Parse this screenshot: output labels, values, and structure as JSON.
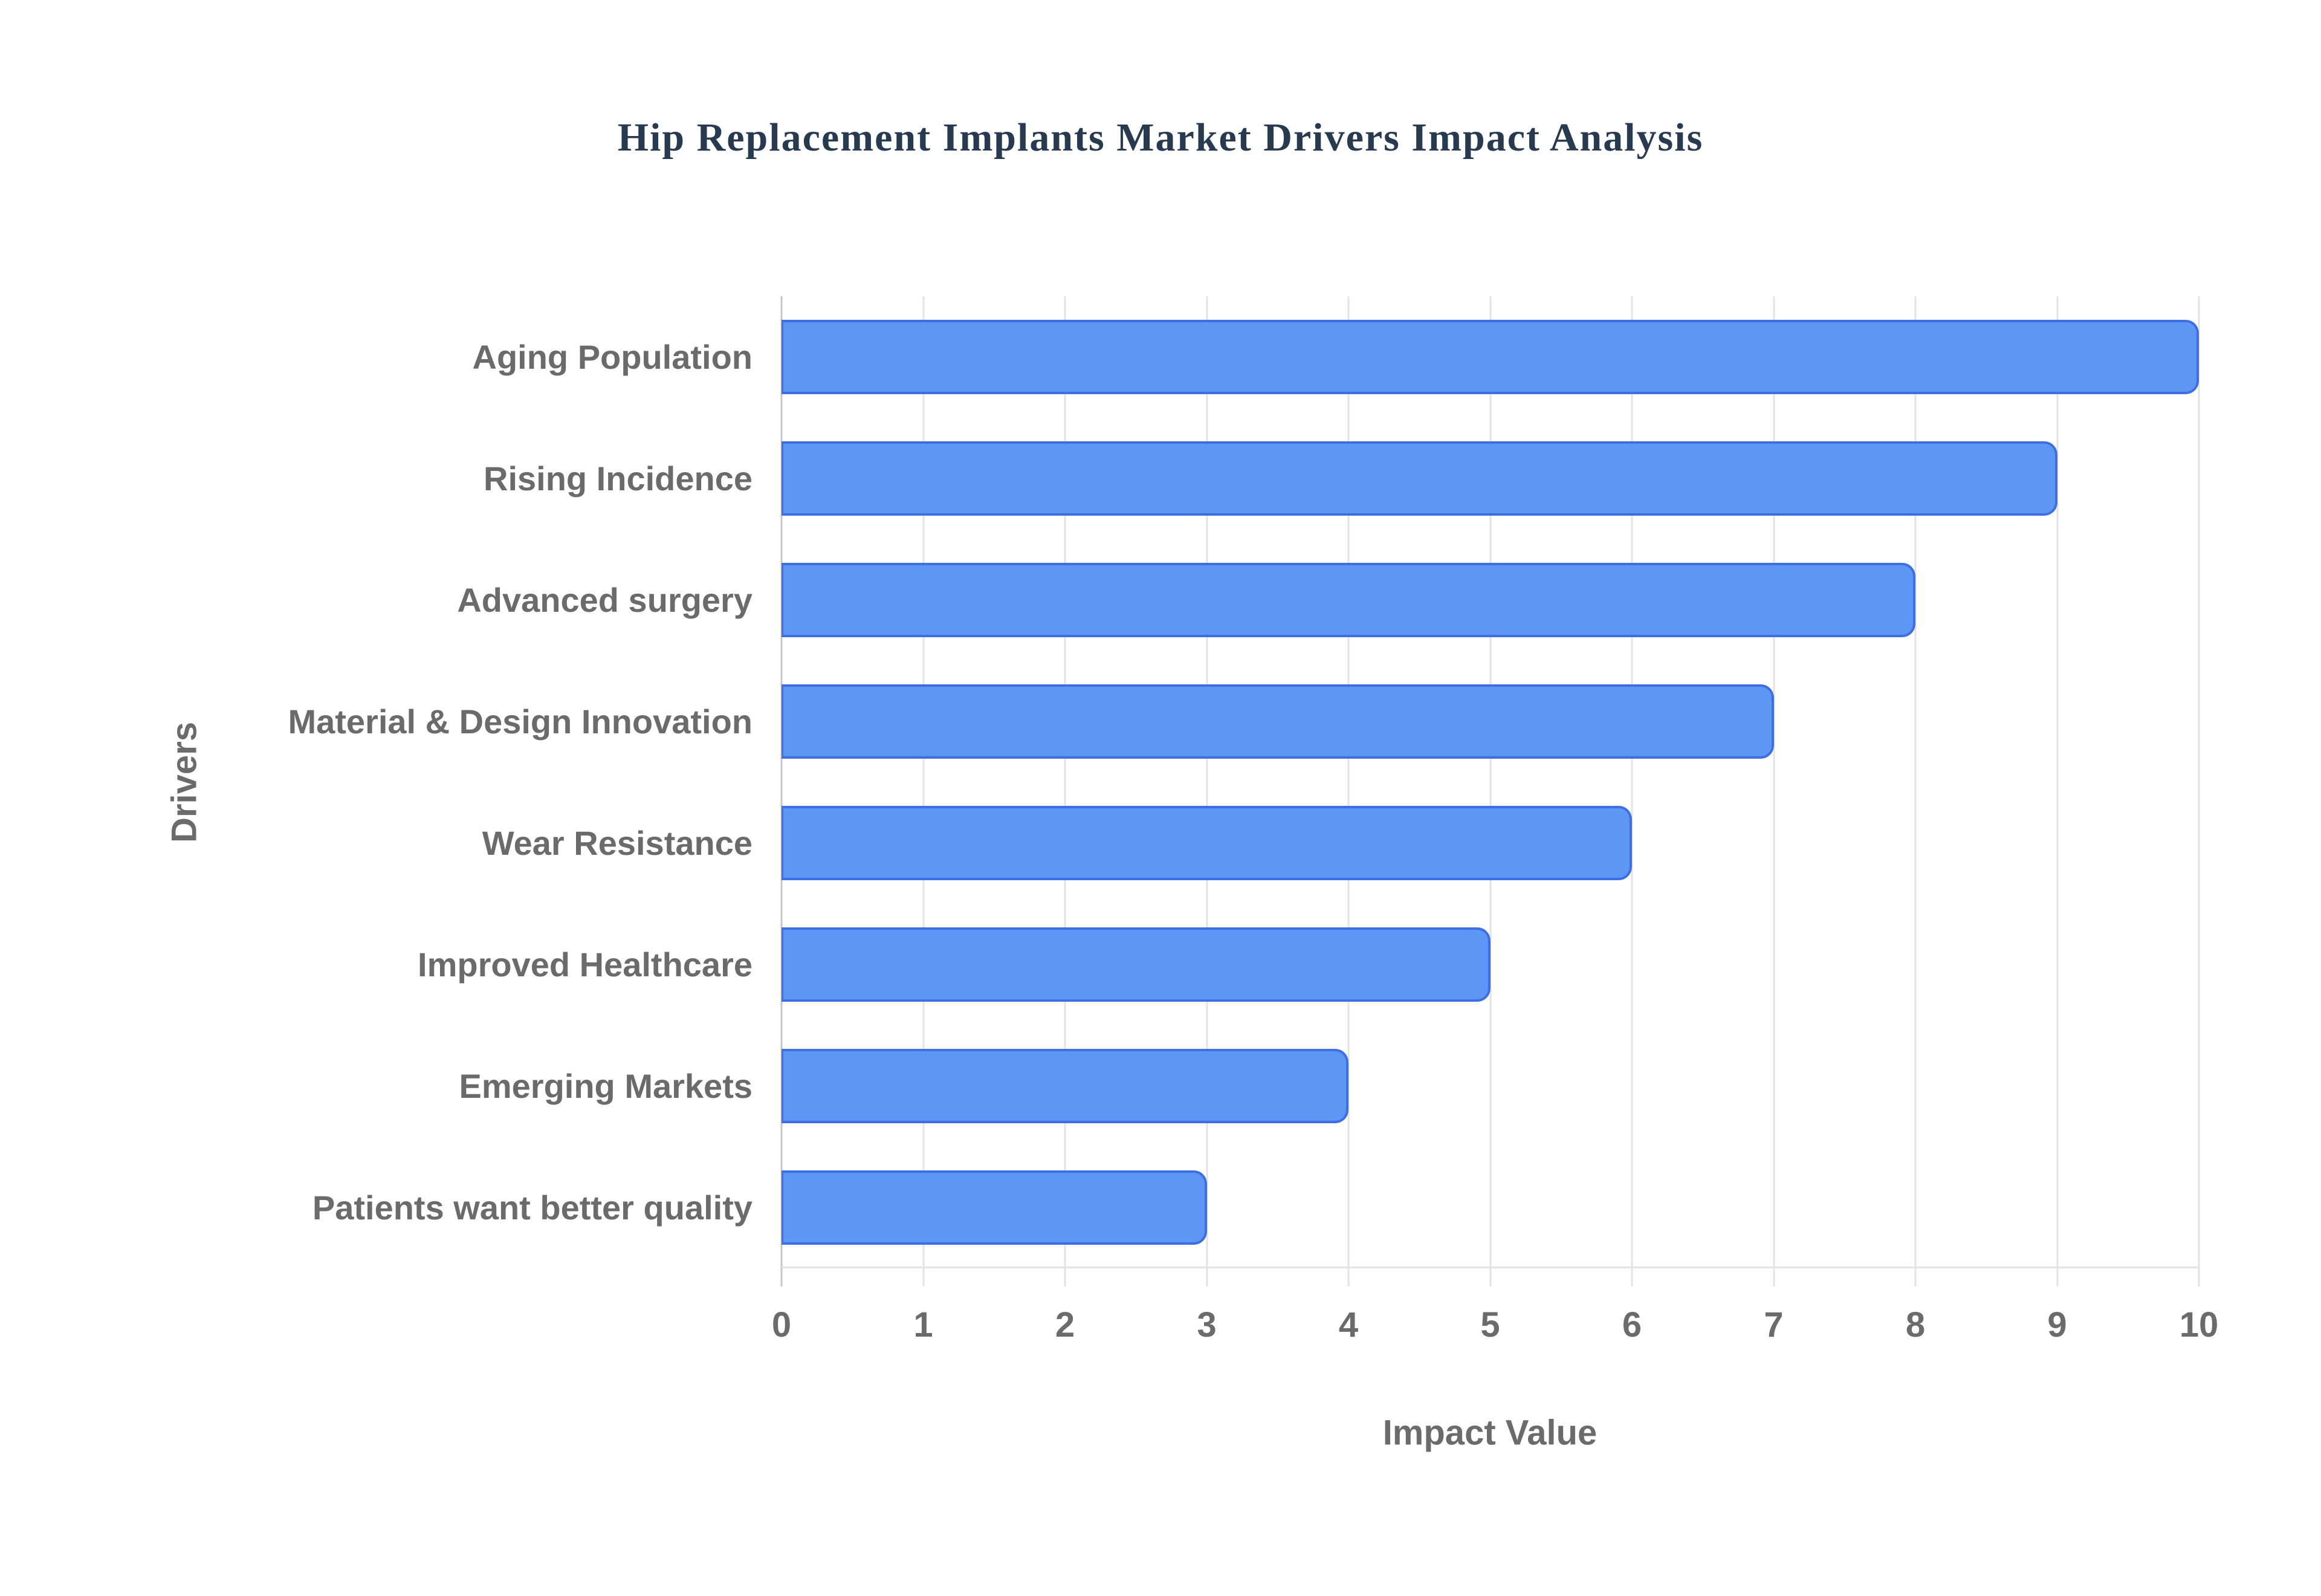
{
  "page": {
    "background": "#ffffff"
  },
  "chart_data": {
    "type": "bar",
    "orientation": "horizontal",
    "title": "Hip Replacement Implants Market Drivers Impact Analysis",
    "categories": [
      "Aging Population",
      "Rising Incidence",
      "Advanced surgery",
      "Material & Design Innovation",
      "Wear Resistance",
      "Improved Healthcare",
      "Emerging Markets",
      "Patients want better quality"
    ],
    "values": [
      10,
      9,
      8,
      7,
      6,
      5,
      4,
      3
    ],
    "xlabel": "Impact Value",
    "ylabel": "Drivers",
    "xlim": [
      0,
      10
    ],
    "xticks": [
      0,
      1,
      2,
      3,
      4,
      5,
      6,
      7,
      8,
      9,
      10
    ],
    "grid": true,
    "legend_visible": false,
    "colors": {
      "bar_fill": "#5E96F5",
      "bar_border": "#3D6EE4",
      "grid_line": "#e3e3e3",
      "zero_line": "#c6c6c6",
      "title_text": "#273a50",
      "label_text": "#6b6b6b",
      "background": "#ffffff"
    }
  }
}
